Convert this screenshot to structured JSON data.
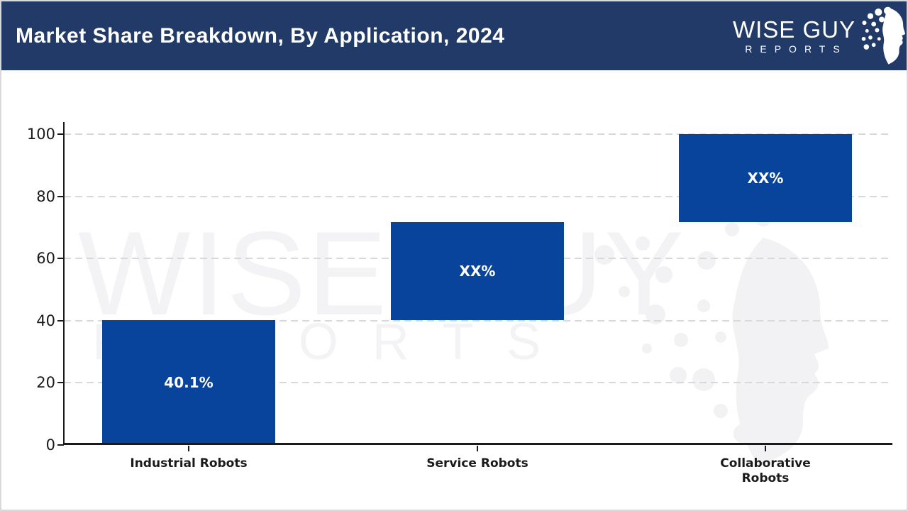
{
  "header": {
    "title": "Market Share Breakdown, By Application, 2024",
    "logo": {
      "line1": "WISE GUY",
      "line2": "REPORTS"
    },
    "bg_color": "#213a67"
  },
  "watermark": {
    "line1": "WISE GUY",
    "line2": "R E P O R T S"
  },
  "colors": {
    "bar": "#09449c",
    "axis": "#1a1a1a",
    "gridline": "#d9d9d9",
    "header_bg": "#213a67",
    "watermark": "#f3f3f6"
  },
  "chart_data": {
    "type": "bar",
    "subtype": "waterfall",
    "title": "Market Share Breakdown, By Application, 2024",
    "categories": [
      "Industrial Robots",
      "Service Robots",
      "Collaborative Robots"
    ],
    "series": [
      {
        "name": "Market Share",
        "segments": [
          {
            "category": "Industrial Robots",
            "start": 0,
            "end": 40.1,
            "label": "40.1%"
          },
          {
            "category": "Service Robots",
            "start": 40.1,
            "end": 71.8,
            "label": "XX%"
          },
          {
            "category": "Collaborative Robots",
            "start": 71.8,
            "end": 100,
            "label": "XX%"
          }
        ]
      }
    ],
    "yticks": [
      0,
      20,
      40,
      60,
      80,
      100
    ],
    "ylim": [
      0,
      104
    ],
    "xlabel": "",
    "ylabel": "",
    "grid": "horizontal-dashed",
    "legend": "none"
  }
}
